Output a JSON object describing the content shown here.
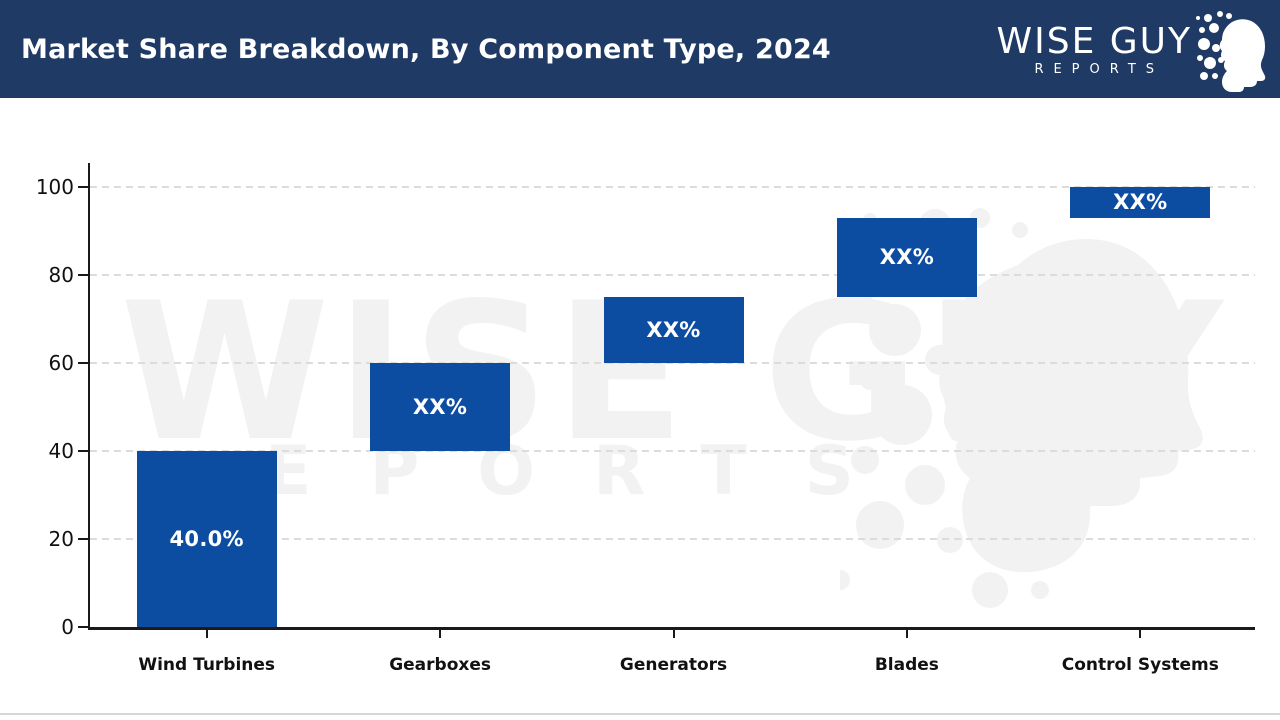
{
  "header": {
    "title": "Market Share Breakdown, By Component Type, 2024",
    "logo": {
      "line1": "WISE GUY",
      "line2": "REPORTS"
    }
  },
  "watermark": {
    "line1": "WISE GUY",
    "line2": "EPORTS"
  },
  "colors": {
    "header_bg": "#1f3a64",
    "bar": "#0d4da1",
    "bar_label": "#ffffff",
    "gridline": "#dcdcdc",
    "axis": "#1a1a1a",
    "watermark": "#f2f2f2"
  },
  "chart_data": {
    "type": "bar",
    "subtype": "waterfall",
    "title": "Market Share Breakdown, By Component Type, 2024",
    "categories": [
      "Wind Turbines",
      "Gearboxes",
      "Generators",
      "Blades",
      "Control Systems"
    ],
    "segments": [
      {
        "category": "Wind Turbines",
        "start": 0,
        "end": 40,
        "label": "40.0%"
      },
      {
        "category": "Gearboxes",
        "start": 40,
        "end": 60,
        "label": "XX%"
      },
      {
        "category": "Generators",
        "start": 60,
        "end": 75,
        "label": "XX%"
      },
      {
        "category": "Blades",
        "start": 75,
        "end": 93,
        "label": "XX%"
      },
      {
        "category": "Control Systems",
        "start": 93,
        "end": 100,
        "label": "XX%"
      }
    ],
    "yticks": [
      0,
      20,
      40,
      60,
      80,
      100
    ],
    "ylim": [
      0,
      100
    ],
    "xlabel": "",
    "ylabel": "",
    "grid": "dashed-horizontal",
    "legend": "none"
  }
}
